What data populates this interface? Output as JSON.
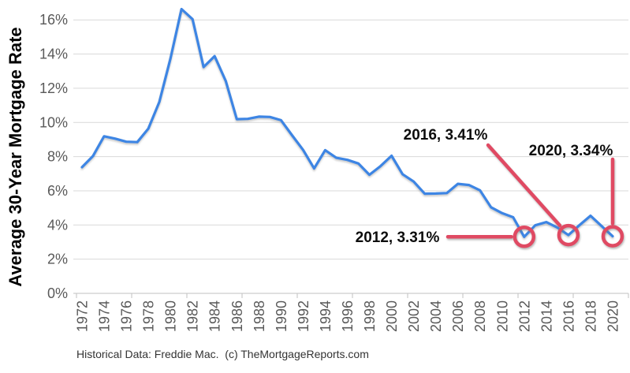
{
  "axis_title": "Average 30-Year Mortgage Rate",
  "footer": "Historical Data: Freddie Mac.  (c) TheMortgageReports.com",
  "colors": {
    "line": "#3d85e4",
    "annotation": "#e04a63",
    "gridline": "#d9d9d9",
    "axis": "#c2c2c2",
    "tick_label": "#595959",
    "annotation_text": "#0d0d0d"
  },
  "chart_data": {
    "type": "line",
    "title": "",
    "xlabel": "",
    "ylabel": "Average 30-Year Mortgage Rate",
    "series_name": "Average 30-Year Mortgage Rate",
    "grid": "horizontal",
    "legend": "none",
    "ylim": [
      0,
      16
    ],
    "yticks": [
      0,
      2,
      4,
      6,
      8,
      10,
      12,
      14,
      16
    ],
    "ytick_labels": [
      "0%",
      "2%",
      "4%",
      "6%",
      "8%",
      "10%",
      "12%",
      "14%",
      "16%"
    ],
    "xtick_step_years": 2,
    "x": [
      1972,
      1973,
      1974,
      1975,
      1976,
      1977,
      1978,
      1979,
      1980,
      1981,
      1982,
      1983,
      1984,
      1985,
      1986,
      1987,
      1988,
      1989,
      1990,
      1991,
      1992,
      1993,
      1994,
      1995,
      1996,
      1997,
      1998,
      1999,
      2000,
      2001,
      2002,
      2003,
      2004,
      2005,
      2006,
      2007,
      2008,
      2009,
      2010,
      2011,
      2012,
      2013,
      2014,
      2015,
      2016,
      2017,
      2018,
      2019,
      2020
    ],
    "values": [
      7.38,
      8.04,
      9.19,
      9.05,
      8.87,
      8.85,
      9.64,
      11.2,
      13.74,
      16.63,
      16.04,
      13.24,
      13.88,
      12.43,
      10.19,
      10.21,
      10.34,
      10.32,
      10.13,
      9.25,
      8.39,
      7.31,
      8.38,
      7.93,
      7.81,
      7.6,
      6.94,
      7.44,
      8.05,
      6.97,
      6.54,
      5.83,
      5.84,
      5.87,
      6.41,
      6.34,
      6.03,
      5.04,
      4.69,
      4.45,
      3.31,
      3.98,
      4.17,
      3.85,
      3.41,
      3.99,
      4.54,
      3.94,
      3.34
    ],
    "annotations": [
      {
        "year": 2012,
        "value": 3.31,
        "label": "2012, 3.31%"
      },
      {
        "year": 2016,
        "value": 3.41,
        "label": "2016, 3.41%"
      },
      {
        "year": 2020,
        "value": 3.34,
        "label": "2020, 3.34%"
      }
    ]
  }
}
